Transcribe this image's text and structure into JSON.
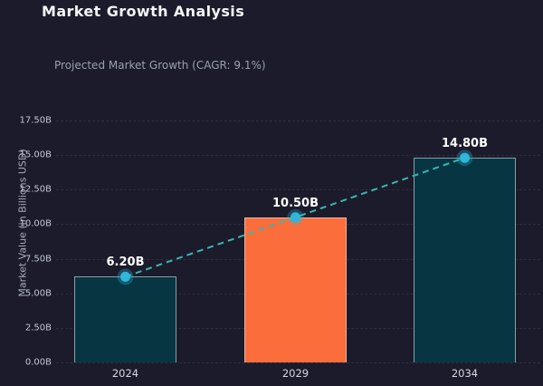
{
  "header": {
    "title": "Market Growth Analysis",
    "subtitle": "Projected Market Growth (CAGR: 9.1%)"
  },
  "colors": {
    "background": "#1b1b2b",
    "bar_teal": "#073642",
    "bar_orange": "#fb6d3b",
    "bar_border": "rgba(222,230,236,0.60)",
    "trend_line": "#3ab6b2",
    "marker_fill": "#2fb6d9",
    "marker_glow": "rgba(47,182,217,0.30)",
    "title_text": "#f4f5f8",
    "subtitle_text": "#9aa0ac",
    "tick_text": "#c3c7d1"
  },
  "chart_data": {
    "type": "bar",
    "title": "Market Growth Analysis",
    "subtitle": "Projected Market Growth (CAGR: 9.1%)",
    "categories": [
      "2024",
      "2029",
      "2034"
    ],
    "values": [
      6.2,
      10.5,
      14.8
    ],
    "value_labels": [
      "6.20B",
      "10.50B",
      "14.80B"
    ],
    "bar_colors": [
      "#073642",
      "#fb6d3b",
      "#073642"
    ],
    "xlabel": "",
    "ylabel": "Market Value (in Billions USD)",
    "ylim": [
      0,
      17.5
    ],
    "yticks": [
      0,
      2.5,
      5,
      7.5,
      10,
      12.5,
      15,
      17.5
    ],
    "ytick_labels": [
      "0.00B",
      "2.50B",
      "5.00B",
      "7.50B",
      "10.00B",
      "12.50B",
      "15.00B",
      "17.50B"
    ],
    "grid": "horizontal-dashed",
    "legend": "none",
    "overlay": {
      "type": "line",
      "style": "dashed",
      "markers": "circle-glow",
      "values": [
        6.2,
        10.5,
        14.8
      ]
    }
  }
}
